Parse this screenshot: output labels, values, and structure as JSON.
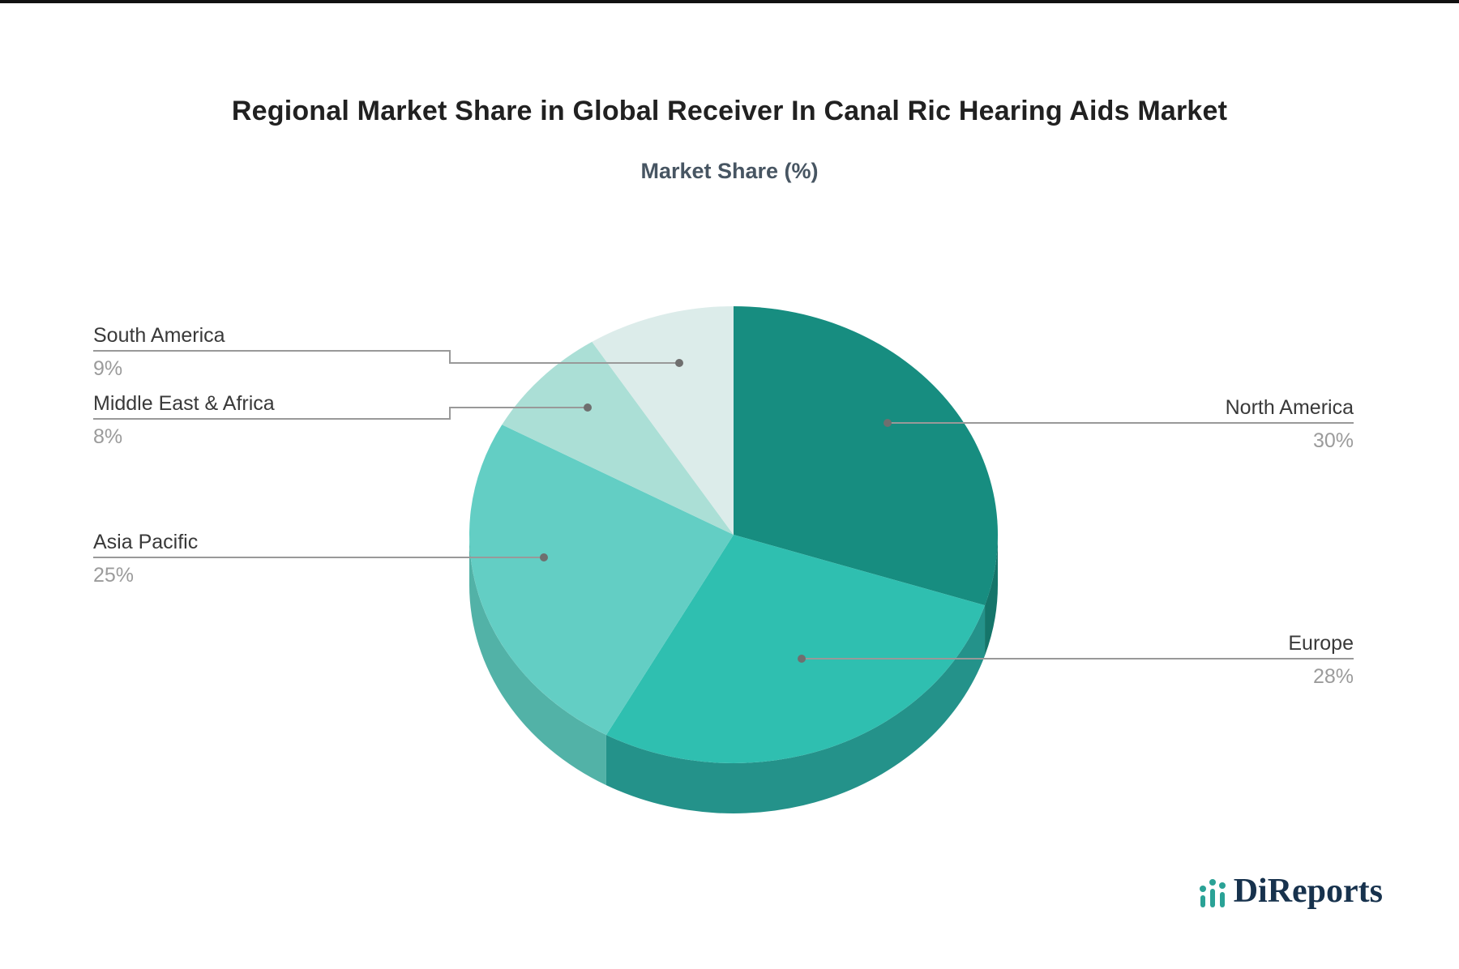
{
  "chart_data": {
    "type": "pie",
    "style": "3d-pie-with-depth",
    "title": "Regional Market Share in Global Receiver In Canal Ric Hearing Aids Market",
    "subtitle": "Market Share (%)",
    "unit": "%",
    "direction": "clockwise",
    "start_angle": "12-o-clock",
    "legend": "callout-labels-with-leader-lines",
    "slices": [
      {
        "label": "North America",
        "value": 30,
        "display_value": "30%",
        "color": "#178d80",
        "side_color": "#15756a",
        "callout_side": "right"
      },
      {
        "label": "Europe",
        "value": 28,
        "display_value": "28%",
        "color": "#2fbfb0",
        "side_color": "#24928a",
        "callout_side": "right"
      },
      {
        "label": "Asia Pacific",
        "value": 25,
        "display_value": "25%",
        "color": "#63cec4",
        "side_color": "#52b2a7",
        "callout_side": "left"
      },
      {
        "label": "Middle East & Africa",
        "value": 8,
        "display_value": "8%",
        "color": "#abdfd6",
        "side_color": "#abdfd6",
        "callout_side": "left"
      },
      {
        "label": "South America",
        "value": 9,
        "display_value": "9%",
        "color": "#dcecea",
        "side_color": "#dcecea",
        "callout_side": "left"
      }
    ],
    "label_color": "#393939",
    "value_color": "#9b9b9b",
    "leader_line_color": "#999999",
    "leader_dot_color": "#6f6f6f"
  },
  "brand": {
    "name": "DiReports",
    "icon": "bar-chart-logo-icon",
    "text_color": "#17324d",
    "icon_color": "#2aa296"
  }
}
